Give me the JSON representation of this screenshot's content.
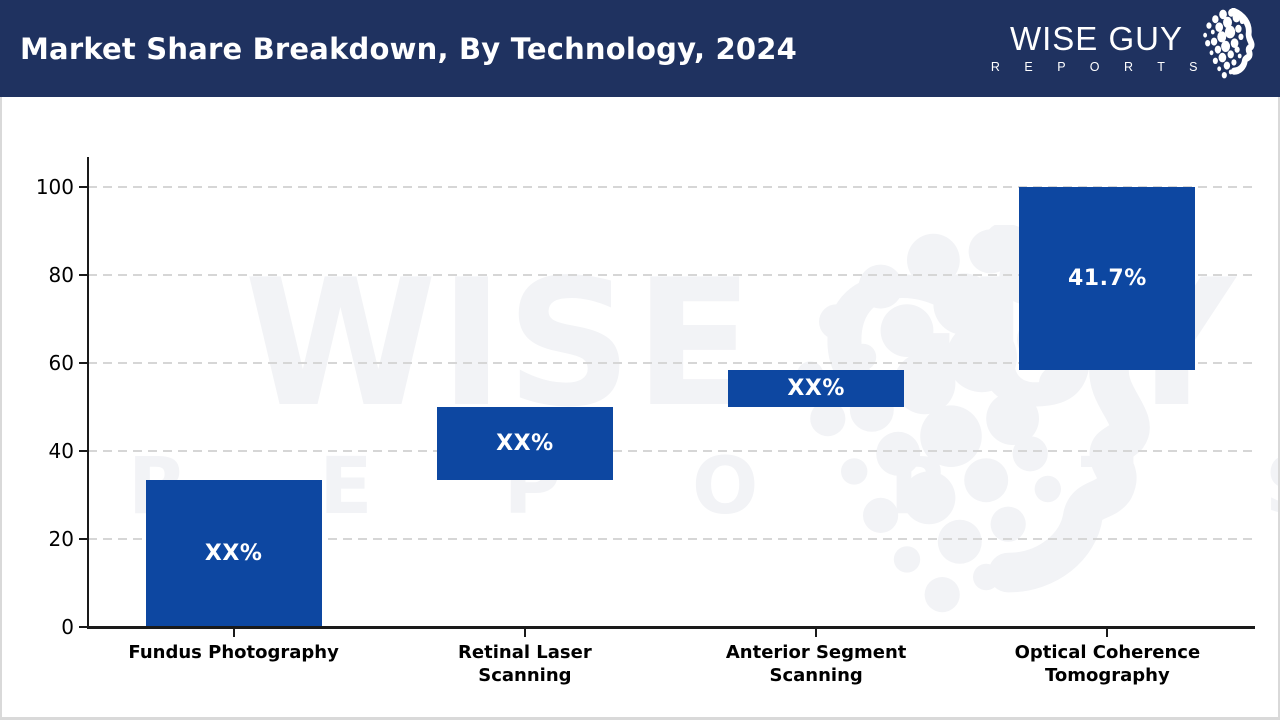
{
  "header": {
    "logo": {
      "line1": "WISE GUY",
      "line2": "R E P O R T S"
    }
  },
  "watermark": {
    "line1": "WISE GUY",
    "line2": "R E P O R T S"
  },
  "chart_data": {
    "type": "bar",
    "subtype": "waterfall",
    "title": "Market Share Breakdown, By Technology, 2024",
    "categories": [
      "Fundus Photography",
      "Retinal Laser Scanning",
      "Anterior Segment Scanning",
      "Optical Coherence Tomography"
    ],
    "categories_lines": [
      [
        "Fundus Photography"
      ],
      [
        "Retinal Laser",
        "Scanning"
      ],
      [
        "Anterior Segment",
        "Scanning"
      ],
      [
        "Optical Coherence",
        "Tomography"
      ]
    ],
    "segments": [
      {
        "label": "XX%",
        "start": 0,
        "end": 33.3
      },
      {
        "label": "XX%",
        "start": 33.3,
        "end": 50.0
      },
      {
        "label": "XX%",
        "start": 50.0,
        "end": 58.3
      },
      {
        "label": "41.7%",
        "start": 58.3,
        "end": 100.0
      }
    ],
    "increments": [
      33.3,
      16.7,
      8.3,
      41.7
    ],
    "bar_labels": [
      "XX%",
      "XX%",
      "XX%",
      "41.7%"
    ],
    "yticks": [
      0,
      20,
      40,
      60,
      80,
      100
    ],
    "ylim": [
      0,
      106
    ],
    "xlabel": "",
    "ylabel": "",
    "legend": "none",
    "grid": "horizontal-dashed",
    "colors": {
      "header_bg": "#1f3260",
      "bar": "#0d47a1",
      "bar_label": "#ffffff",
      "grid": "#d6d6d6",
      "axis": "#1a1a1a",
      "watermark": "#f2f3f6"
    }
  }
}
